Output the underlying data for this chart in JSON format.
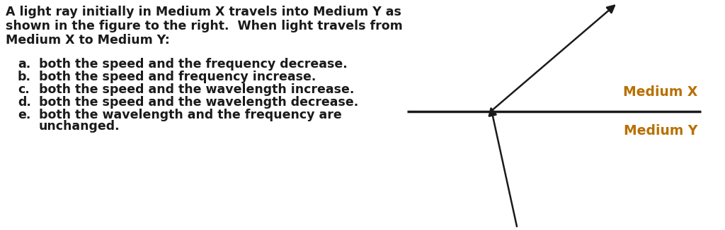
{
  "background_color": "#ffffff",
  "fig_width": 10.24,
  "fig_height": 3.26,
  "dpi": 100,
  "question_lines": [
    "A light ray initially in Medium X travels into Medium Y as",
    "shown in the figure to the right.  When light travels from",
    "Medium X to Medium Y:"
  ],
  "options_letters": [
    "a.",
    "b.",
    "c.",
    "d.",
    "e."
  ],
  "options_texts": [
    "both the speed and the frequency decrease.",
    "both the speed and frequency increase.",
    "both the speed and the wavelength increase.",
    "both the speed and the wavelength decrease.",
    "both the wavelength and the frequency are"
  ],
  "option_e_line2": "unchanged.",
  "text_color": "#1a1a1a",
  "medium_label_color": "#b87000",
  "medium_x_label": "Medium X",
  "medium_y_label": "Medium Y",
  "arrow_color": "#1a1a1a",
  "line_color": "#1a1a1a",
  "font_size_question": 12.5,
  "font_size_options": 12.5,
  "font_size_labels": 13.5,
  "font_weight": "bold"
}
